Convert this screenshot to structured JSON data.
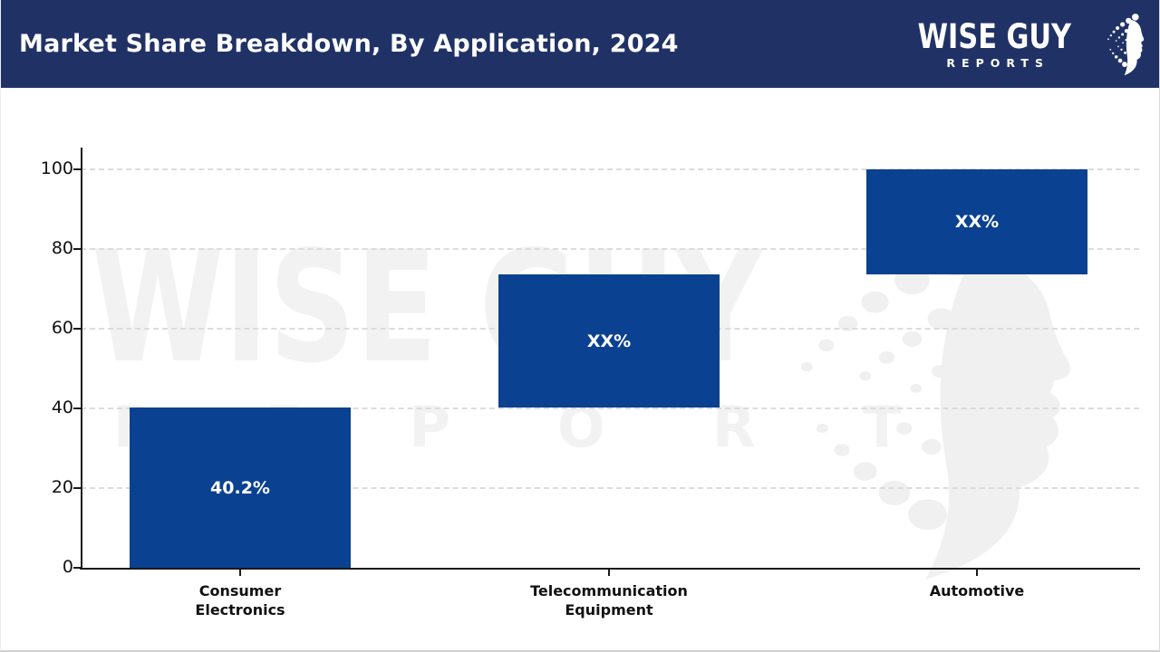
{
  "header": {
    "title": "Market Share Breakdown, By Application, 2024",
    "logo": {
      "line1": "WISE GUY",
      "line2": "REPORTS",
      "face_icon": "dotted-face-profile-icon"
    }
  },
  "watermark": {
    "line1": "WISE GUY",
    "line2": "REPORTS",
    "face_icon": "dotted-face-profile-icon"
  },
  "colors": {
    "header_bg": "#203265",
    "bar": "#0a4191",
    "bar_label": "#ffffff",
    "grid": "#dcdcdc",
    "axis": "#1a1a1a",
    "watermark": "#f2f2f2"
  },
  "chart_data": {
    "type": "bar",
    "subtype": "waterfall",
    "title": "Market Share Breakdown, By Application, 2024",
    "categories": [
      "Consumer\nElectronics",
      "Telecommunication\nEquipment",
      "Automotive"
    ],
    "segments": [
      {
        "category": "Consumer Electronics",
        "start": 0,
        "end": 40.2,
        "label": "40.2%"
      },
      {
        "category": "Telecommunication Equipment",
        "start": 40.2,
        "end": 73.6,
        "label": "XX%"
      },
      {
        "category": "Automotive",
        "start": 73.6,
        "end": 100,
        "label": "XX%"
      }
    ],
    "values": [
      40.2,
      33.4,
      26.4
    ],
    "xlabel": "",
    "ylabel": "",
    "yticks": [
      0,
      20,
      40,
      60,
      80,
      100
    ],
    "ylim": [
      0,
      100
    ],
    "grid": "horizontal-dashed",
    "legend": "none"
  }
}
